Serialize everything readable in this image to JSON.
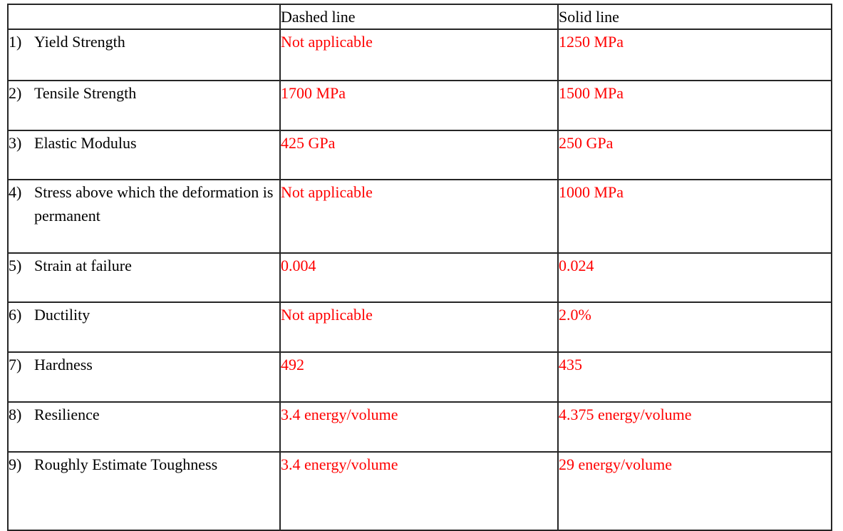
{
  "colors": {
    "value_red": "#ff0000",
    "text_black": "#000000",
    "border": "#262626"
  },
  "table": {
    "headers": [
      "",
      "Dashed line",
      "Solid line"
    ],
    "rows": [
      {
        "num": "1)",
        "property": "Yield Strength",
        "dashed": "Not applicable",
        "solid": "1250 MPa"
      },
      {
        "num": "2)",
        "property": "Tensile Strength",
        "dashed": "1700 MPa",
        "solid": "1500 MPa"
      },
      {
        "num": "3)",
        "property": "Elastic Modulus",
        "dashed": "425 GPa",
        "solid": "250 GPa"
      },
      {
        "num": "4)",
        "property": "Stress above which the deformation is permanent",
        "dashed": "Not applicable",
        "solid": "1000 MPa"
      },
      {
        "num": "5)",
        "property": "Strain at failure",
        "dashed": "0.004",
        "solid": "0.024"
      },
      {
        "num": "6)",
        "property": "Ductility",
        "dashed": "Not applicable",
        "solid": "2.0%"
      },
      {
        "num": "7)",
        "property": "Hardness",
        "dashed": "492",
        "solid": "435"
      },
      {
        "num": "8)",
        "property": "Resilience",
        "dashed": "3.4 energy/volume",
        "solid": "4.375 energy/volume"
      },
      {
        "num": "9)",
        "property": "Roughly Estimate Toughness",
        "dashed": "3.4 energy/volume",
        "solid": "29 energy/volume"
      }
    ]
  }
}
